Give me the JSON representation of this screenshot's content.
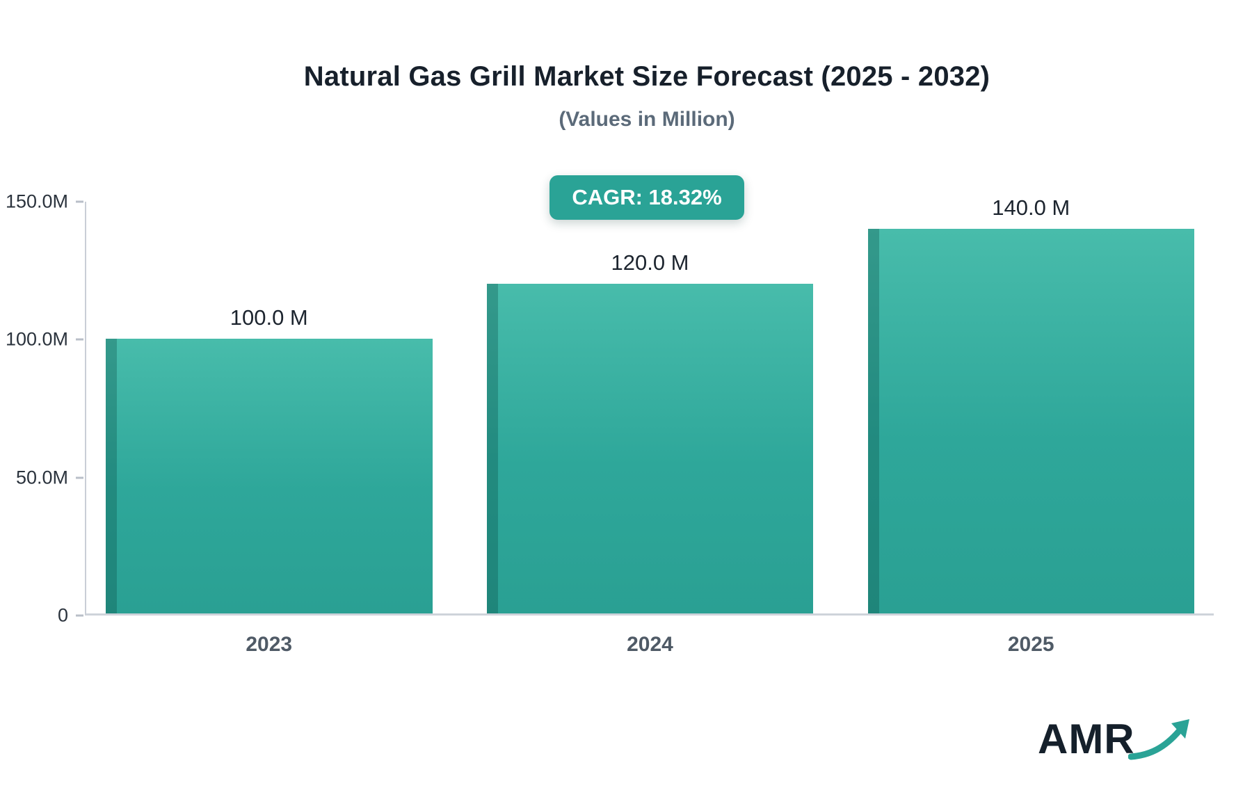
{
  "header": {
    "title": "Natural Gas Grill Market Size Forecast (2025 - 2032)",
    "subtitle": "(Values in Million)",
    "cagr_badge": "CAGR: 18.32%"
  },
  "chart_data": {
    "type": "bar",
    "title": "Natural Gas Grill Market Size Forecast (2025 - 2032)",
    "subtitle": "(Values in Million)",
    "unit": "Million",
    "categories": [
      "2023",
      "2024",
      "2025"
    ],
    "values": [
      100.0,
      120.0,
      140.0
    ],
    "value_labels": [
      "100.0 M",
      "120.0 M",
      "140.0 M"
    ],
    "cagr_percent": 18.32,
    "ylim": [
      0,
      150
    ],
    "y_ticks": [
      "150.0M",
      "100.0M",
      "50.0M",
      "0"
    ],
    "y_tick_values": [
      150,
      100,
      50,
      0
    ],
    "xlabel": "",
    "ylabel": "",
    "grid": false,
    "legend": "none",
    "bar_color": "#2fa79a",
    "bar_edge_color": "#1f8579"
  },
  "logo": {
    "text": "AMR"
  },
  "colors": {
    "accent": "#2aa396",
    "title_text": "#17202b",
    "subtitle_text": "#5b6a79",
    "axis_line": "#c9ced6",
    "tick_text": "#2b333d",
    "xlabel_text": "#4f5a66"
  }
}
